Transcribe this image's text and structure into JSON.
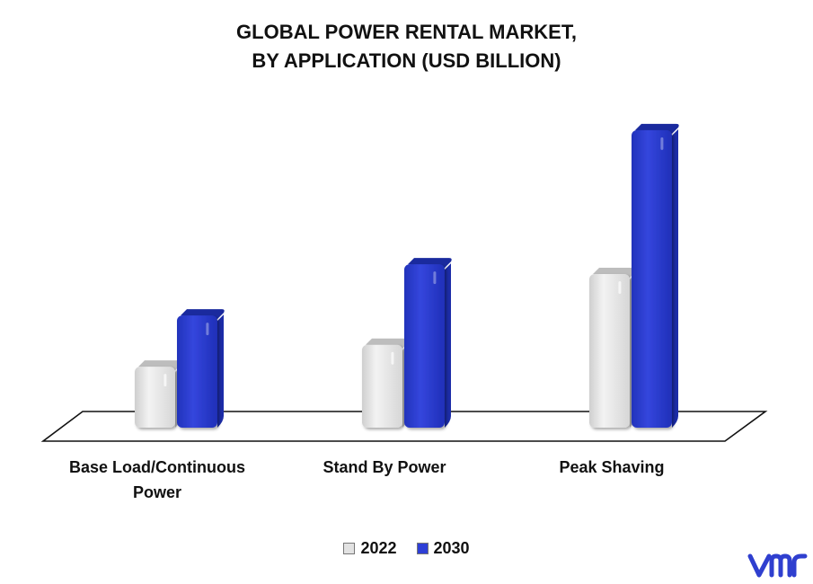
{
  "chart_data": {
    "type": "bar",
    "title_lines": [
      "GLOBAL POWER RENTAL MARKET,",
      "BY APPLICATION (USD BILLION)"
    ],
    "categories": [
      "Base Load/Continuous\nPower",
      "Stand By Power",
      "Peak Shaving"
    ],
    "series": [
      {
        "name": "2022",
        "values": [
          12.5,
          17.0,
          31.5
        ],
        "color": "#e2e2e2"
      },
      {
        "name": "2030",
        "values": [
          23.0,
          33.5,
          61.0
        ],
        "color": "#2e3fd6"
      }
    ],
    "ylim": [
      0,
      70
    ],
    "grid": false,
    "legend_position": "bottom",
    "style": "3d"
  },
  "logo": {
    "icon": "vmr-logo-icon",
    "color": "#2f3fcf"
  }
}
